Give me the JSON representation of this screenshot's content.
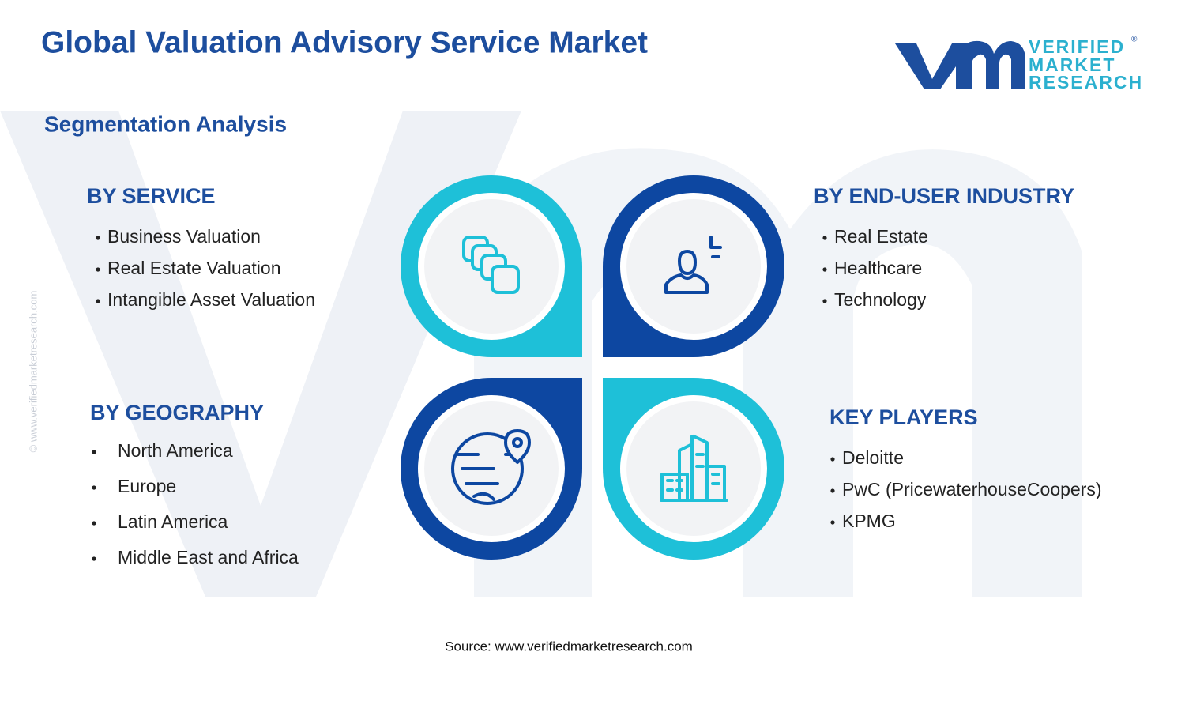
{
  "header": {
    "title": "Global Valuation Advisory Service Market",
    "logo": {
      "lines": [
        "VERIFIED",
        "MARKET",
        "RESEARCH"
      ],
      "mark": "®"
    }
  },
  "subtitle": "Segmentation Analysis",
  "sections": [
    {
      "heading": "BY SERVICE",
      "items": [
        "Business Valuation",
        "Real Estate Valuation",
        "Intangible Asset Valuation"
      ]
    },
    {
      "heading": "BY END-USER INDUSTRY",
      "items": [
        "Real Estate",
        "Healthcare",
        "Technology"
      ]
    },
    {
      "heading": "BY GEOGRAPHY",
      "items": [
        "North America",
        "Europe",
        "Latin America",
        "Middle East and Africa"
      ]
    },
    {
      "heading": "KEY PLAYERS",
      "items": [
        "Deloitte",
        "PwC (PricewaterhouseCoopers)",
        "KPMG"
      ]
    }
  ],
  "source": "Source: www.verifiedmarketresearch.com",
  "watermark": "© www.verifiedmarketresearch.com"
}
